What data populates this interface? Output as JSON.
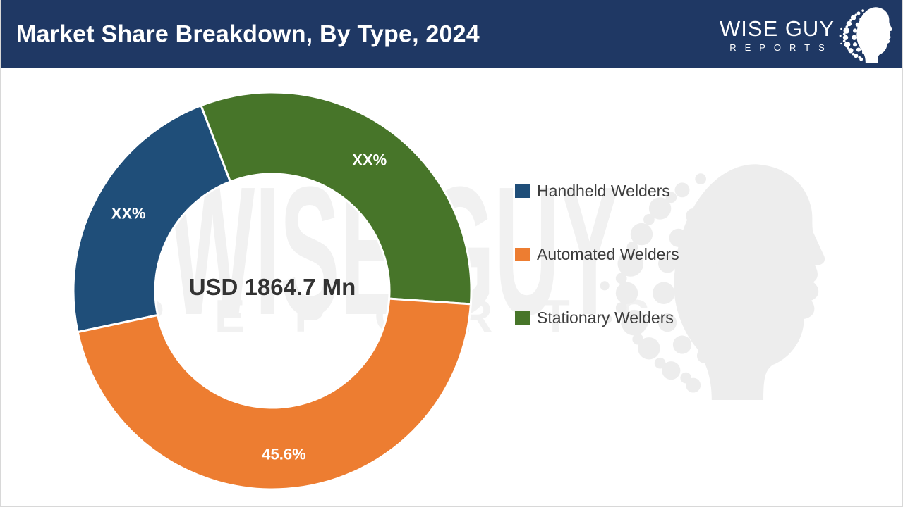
{
  "header": {
    "title": "Market Share Breakdown, By Type, 2024",
    "logo": {
      "name_line": "WISE GUY",
      "reports_line": "REPORTS"
    }
  },
  "watermark": {
    "name_line": "WISE GUY",
    "reports_line": "REPORTS"
  },
  "chart_data": {
    "type": "pie",
    "subtype": "donut",
    "title": "Market Share Breakdown, By Type, 2024",
    "center_label": "USD 1864.7 Mn",
    "segments": [
      {
        "name": "Handheld Welders",
        "color": "#1F4E79",
        "value_pct_est": 22.5,
        "display_label": "XX%"
      },
      {
        "name": "Automated Welders",
        "color": "#ED7D31",
        "value_pct_est": 45.6,
        "display_label": "45.6%"
      },
      {
        "name": "Stationary Welders",
        "color": "#477529",
        "value_pct_est": 31.9,
        "display_label": "XX%"
      }
    ],
    "layout": {
      "start_angle_deg": 258,
      "draw_order": [
        0,
        2,
        1
      ],
      "legend_position": "right",
      "donut_hole_ratio": 0.59,
      "gridlines": false
    }
  },
  "colors": {
    "header_bg": "#1F3864",
    "watermark": "#F1F1F1",
    "center_text": "#333333",
    "legend_text": "#3d3d3d"
  }
}
